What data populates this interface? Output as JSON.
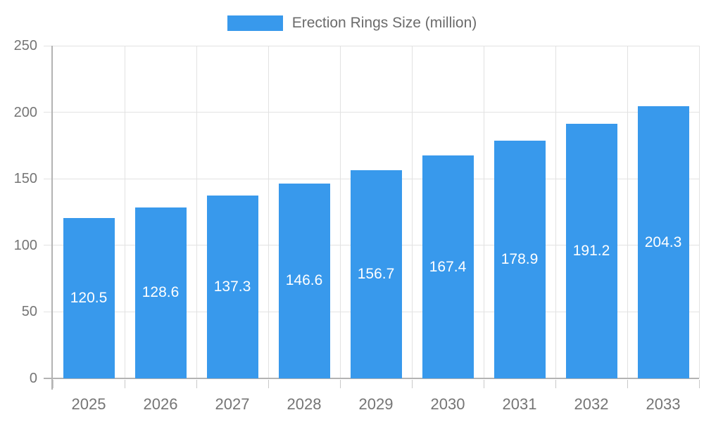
{
  "chart_data": {
    "type": "bar",
    "title": "Erection Rings Size (million)",
    "categories": [
      "2025",
      "2026",
      "2027",
      "2028",
      "2029",
      "2030",
      "2031",
      "2032",
      "2033"
    ],
    "series": [
      {
        "name": "Erection Rings Size (million)",
        "values": [
          120.5,
          128.6,
          137.3,
          146.6,
          156.7,
          167.4,
          178.9,
          191.2,
          204.3
        ]
      }
    ],
    "values": [
      120.5,
      128.6,
      137.3,
      146.6,
      156.7,
      167.4,
      178.9,
      191.2,
      204.3
    ],
    "value_labels": [
      "120.5",
      "128.6",
      "137.3",
      "146.6",
      "156.7",
      "167.4",
      "178.9",
      "191.2",
      "204.3"
    ],
    "xlabel": "",
    "ylabel": "",
    "ylim": [
      0,
      250
    ],
    "yticks": [
      0,
      50,
      100,
      150,
      200,
      250
    ],
    "ytick_labels": [
      "0",
      "50",
      "100",
      "150",
      "200",
      "250"
    ],
    "grid": true,
    "legend_position": "top",
    "colors": {
      "bar": "#3899ec",
      "value_label": "#ffffff",
      "gridline": "#e2e2e2",
      "axis_line": "#b3b3b3",
      "tick": "#c9c9c9",
      "axis_label": "#757575",
      "legend_text": "#6b6b6b",
      "background": "#ffffff"
    }
  }
}
